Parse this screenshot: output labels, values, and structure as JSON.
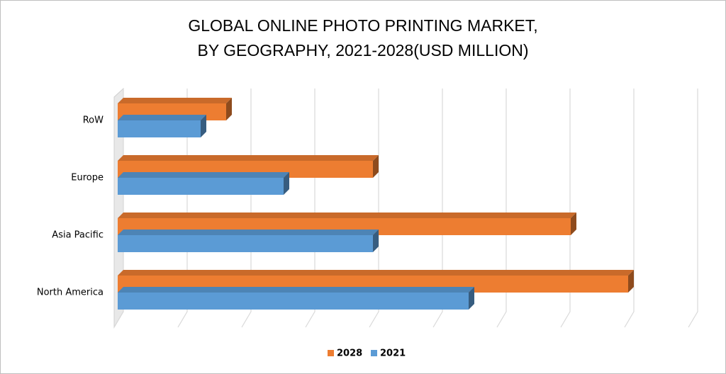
{
  "chart_data": {
    "type": "bar3d_horizontal",
    "title": "GLOBAL ONLINE PHOTO PRINTING MARKET,",
    "subtitle": "BY GEOGRAPHY, 2021-2028(USD MILLION)",
    "categories": [
      "RoW",
      "Europe",
      "Asia Pacific",
      "North America"
    ],
    "series": [
      {
        "name": "2028",
        "color": "#ed7d31",
        "values": [
          1.7,
          4.0,
          7.1,
          8.0
        ]
      },
      {
        "name": "2021",
        "color": "#5b9bd5",
        "values": [
          1.3,
          2.6,
          4.0,
          5.5
        ]
      }
    ],
    "xlim": [
      0,
      9
    ],
    "xticks": [
      0,
      1,
      2,
      3,
      4,
      5,
      6,
      7,
      8,
      9
    ],
    "tick_labels": false,
    "grid": true,
    "legend": "bottom"
  }
}
